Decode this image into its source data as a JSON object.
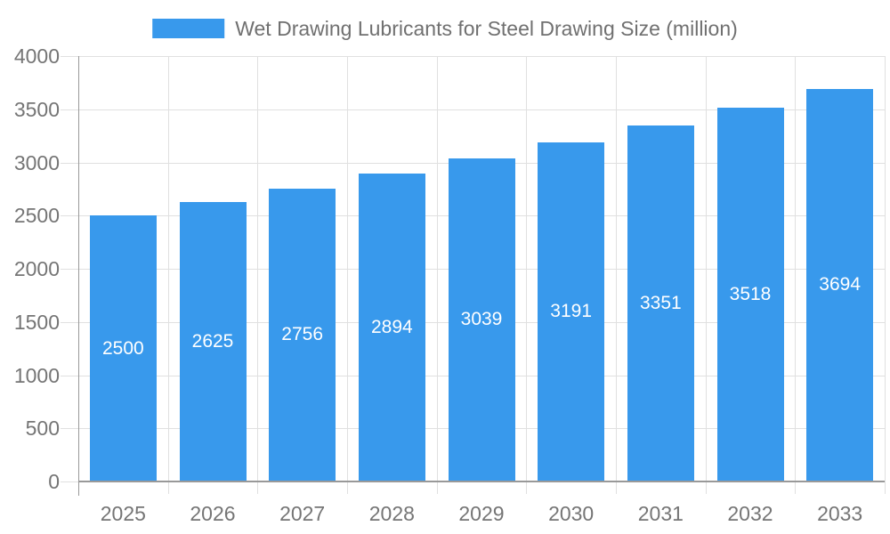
{
  "chart_data": {
    "type": "bar",
    "title": "Wet Drawing Lubricants for Steel Drawing Size (million)",
    "categories": [
      "2025",
      "2026",
      "2027",
      "2028",
      "2029",
      "2030",
      "2031",
      "2032",
      "2033"
    ],
    "values": [
      2500,
      2625,
      2756,
      2894,
      3039,
      3191,
      3351,
      3518,
      3694
    ],
    "xlabel": "",
    "ylabel": "",
    "ylim": [
      0,
      4000
    ],
    "yticks": [
      0,
      500,
      1000,
      1500,
      2000,
      2500,
      3000,
      3500,
      4000
    ],
    "grid": true,
    "legend_position": "top-center",
    "bar_labels_visible": true,
    "colors": {
      "bar": "#3899EC",
      "bar_label": "#FFFFFF",
      "axis_line": "#999999",
      "grid_line": "#E0E0E0",
      "tick_text": "#757575",
      "legend_text": "#707070",
      "background": "#FFFFFF"
    }
  }
}
